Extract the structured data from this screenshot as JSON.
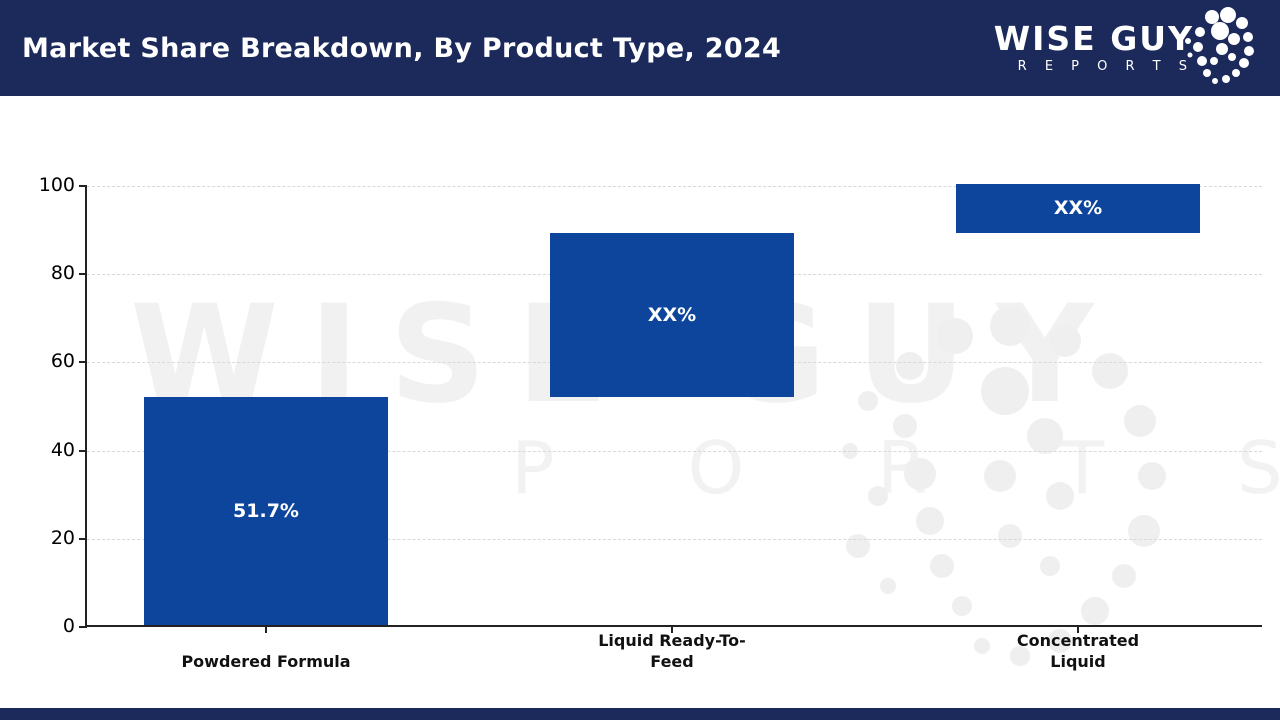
{
  "header": {
    "title": "Market Share Breakdown, By Product Type, 2024",
    "brand": {
      "line1": "WISE GUY",
      "line2": "R E P O R T S"
    },
    "bg_color": "#1b2a5b"
  },
  "watermark": {
    "line1": "WISE GUY",
    "line2": "R E P O R T S"
  },
  "chart_data": {
    "type": "bar",
    "subtype": "stacked-waterfall",
    "title": "Market Share Breakdown, By Product Type, 2024",
    "categories": [
      "Powdered Formula",
      "Liquid Ready-To-Feed",
      "Concentrated Liquid"
    ],
    "category_lines": [
      [
        "Powdered Formula"
      ],
      [
        "Liquid Ready-To-",
        "Feed"
      ],
      [
        "Concentrated",
        "Liquid"
      ]
    ],
    "segments": [
      {
        "category": "Powdered Formula",
        "start": 0,
        "end": 51.7,
        "label": "51.7%"
      },
      {
        "category": "Liquid Ready-To-Feed",
        "start": 51.7,
        "end": 89,
        "label": "XX%"
      },
      {
        "category": "Concentrated Liquid",
        "start": 89,
        "end": 100,
        "label": "XX%"
      }
    ],
    "bar_color": "#0d459c",
    "label_color": "#ffffff",
    "ylim": [
      0,
      100
    ],
    "yticks": [
      0,
      20,
      40,
      60,
      80,
      100
    ],
    "xlabel": "",
    "ylabel": "",
    "grid": "dashed-horizontal",
    "legend": "none"
  }
}
